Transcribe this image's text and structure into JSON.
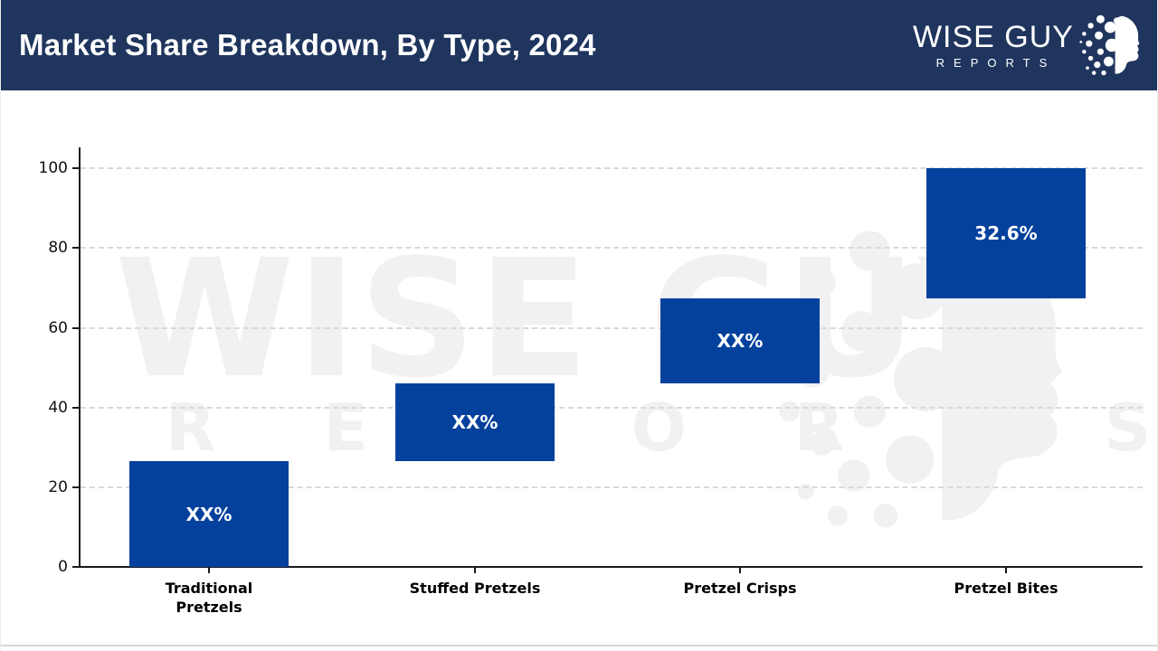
{
  "header": {
    "title": "Market Share Breakdown, By Type, 2024",
    "logo": {
      "wordmark": "WISE GUY",
      "subtext": "REPORTS"
    }
  },
  "watermark": {
    "line1": "WISE GUY",
    "line2": "R E P O R T S"
  },
  "chart_data": {
    "type": "bar",
    "subtype": "floating-segment-waterfall",
    "title": "Market Share Breakdown, By Type, 2024",
    "categories": [
      "Traditional\nPretzels",
      "Stuffed Pretzels",
      "Pretzel Crisps",
      "Pretzel Bites"
    ],
    "bars": [
      {
        "category": "Traditional Pretzels",
        "start": 0,
        "end": 26.5,
        "label": "XX%"
      },
      {
        "category": "Stuffed Pretzels",
        "start": 26.5,
        "end": 46.0,
        "label": "XX%"
      },
      {
        "category": "Pretzel Crisps",
        "start": 46.0,
        "end": 67.4,
        "label": "XX%"
      },
      {
        "category": "Pretzel Bites",
        "start": 67.4,
        "end": 100,
        "label": "32.6%"
      }
    ],
    "yticks": [
      0,
      20,
      40,
      60,
      80,
      100
    ],
    "ylim": [
      0,
      105
    ],
    "xlabel": "",
    "ylabel": "",
    "legend": null,
    "grid": "horizontal-dashed",
    "bar_color": "#04419C",
    "bar_label_color": "#FFFFFF"
  },
  "colors": {
    "header_bg": "#1F355E",
    "bar": "#04419C",
    "grid": "#D9D9D9",
    "axis": "#1A1A1A",
    "watermark": "#F1F1F4",
    "footer_rule": "#D7D7D7"
  }
}
